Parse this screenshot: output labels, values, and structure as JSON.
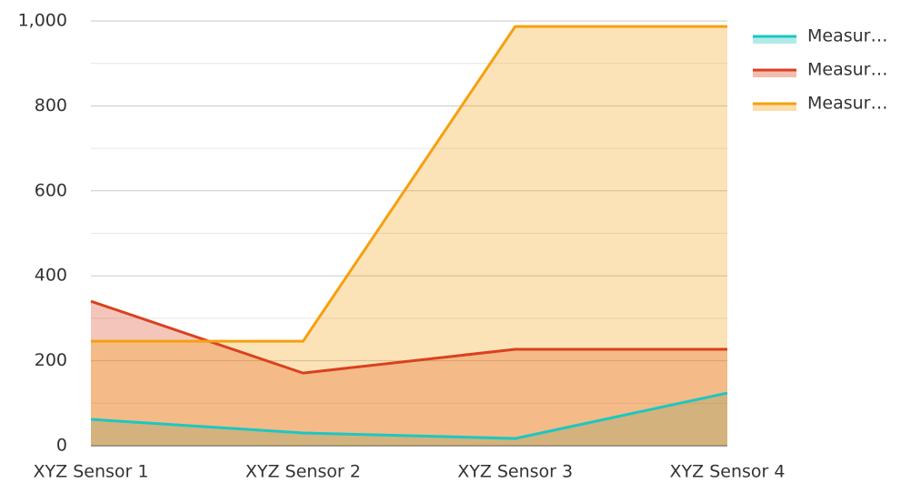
{
  "chart_data": {
    "type": "area",
    "categories": [
      "XYZ Sensor 1",
      "XYZ Sensor 2",
      "XYZ Sensor 3",
      "XYZ Sensor 4"
    ],
    "series": [
      {
        "name": "Measur…",
        "color": "#1cc7c1",
        "values": [
          62,
          30,
          17,
          124
        ]
      },
      {
        "name": "Measur…",
        "color": "#d9411e",
        "values": [
          340,
          171,
          227,
          227
        ]
      },
      {
        "name": "Measur…",
        "color": "#f5a00f",
        "values": [
          246,
          246,
          987,
          987
        ]
      }
    ],
    "ylim": [
      0,
      1000
    ],
    "yticks": [
      0,
      200,
      400,
      600,
      800,
      {
        "value": 1000,
        "label": "1,000"
      }
    ],
    "minor_yticks": [
      100,
      300,
      500,
      700,
      900
    ],
    "grid": true,
    "legend": "right"
  }
}
